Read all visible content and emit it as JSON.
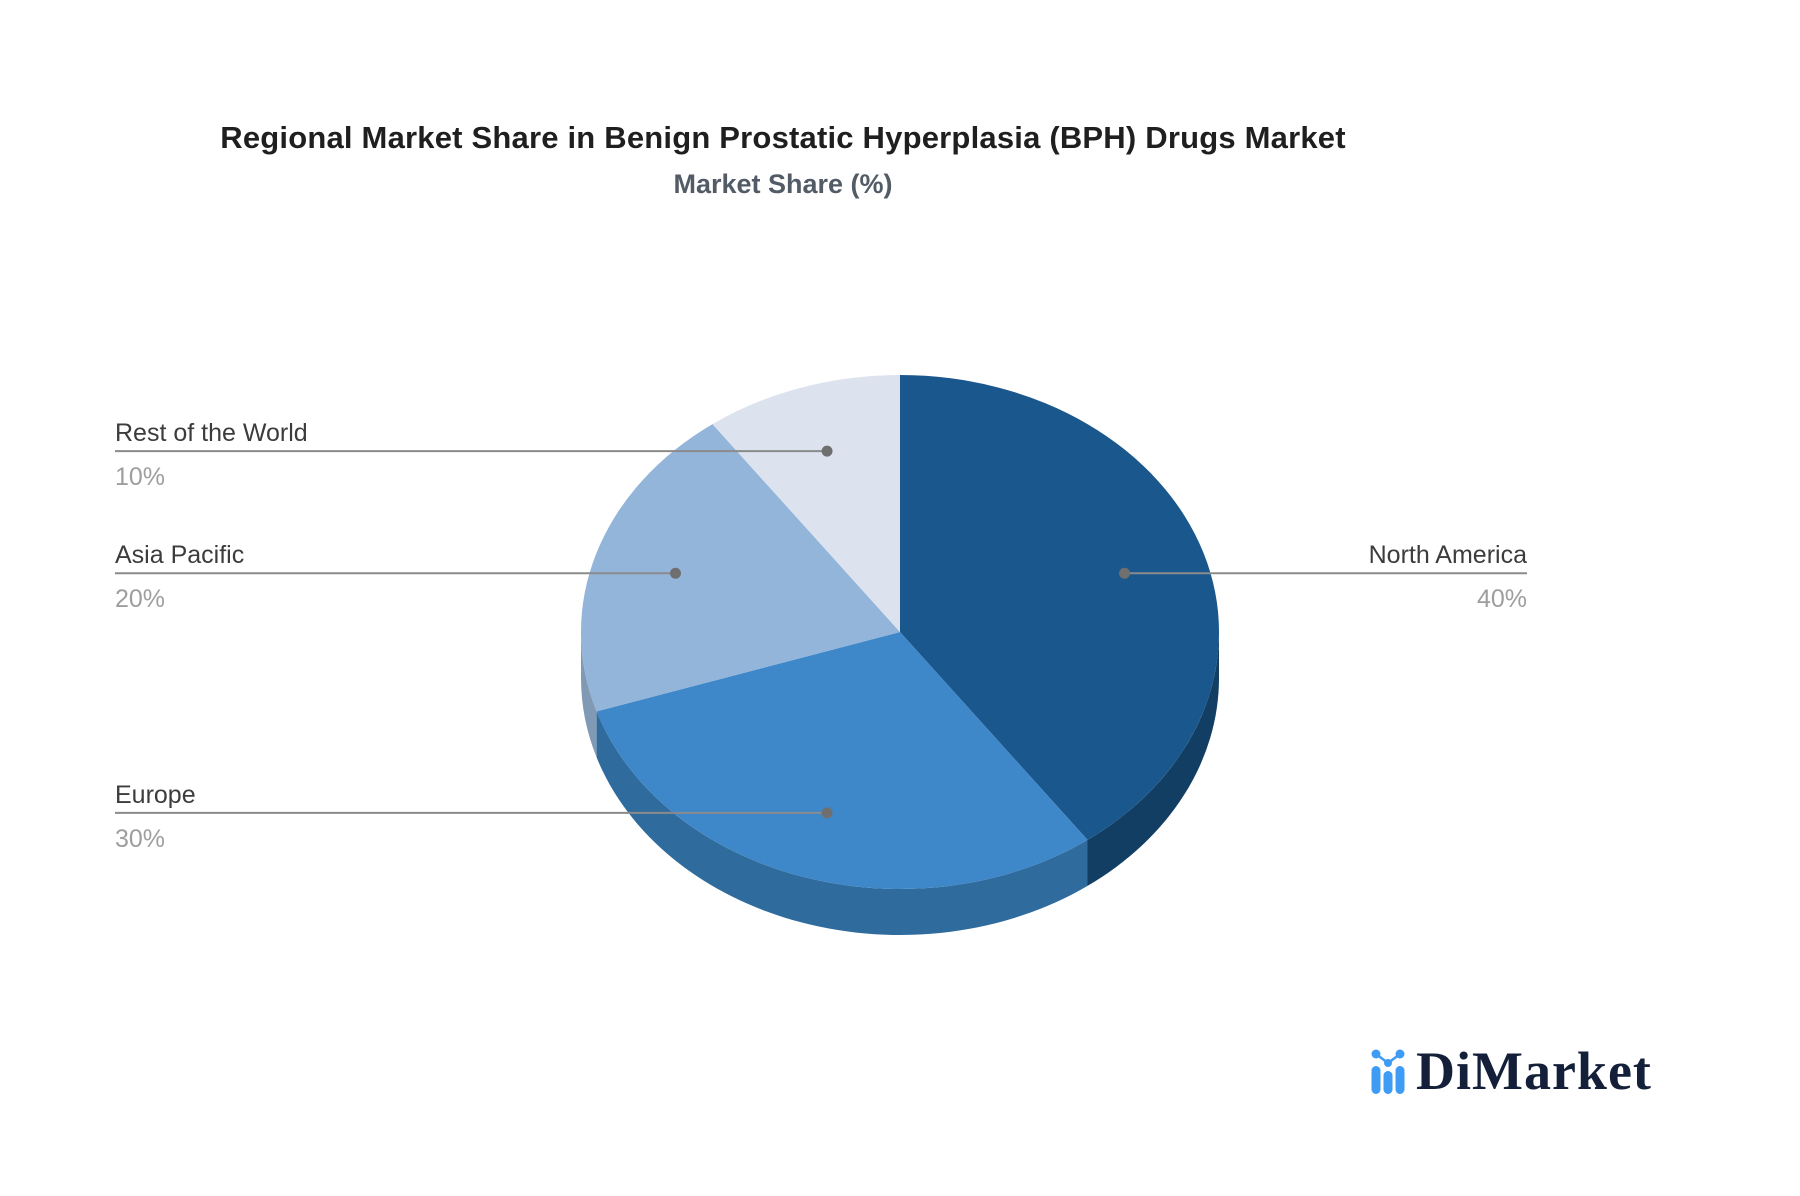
{
  "title": "Regional Market Share in Benign Prostatic Hyperplasia (BPH) Drugs Market",
  "subtitle": "Market Share (%)",
  "chart_data": {
    "type": "pie",
    "style": "3d-depth",
    "unit": "%",
    "start_angle": "12-o-clock",
    "direction": "clockwise",
    "legend_position": "none",
    "labels_shown_as": "leader-line callouts",
    "categories": [
      "North America",
      "Europe",
      "Asia Pacific",
      "Rest of the World"
    ],
    "values": [
      40,
      30,
      20,
      10
    ],
    "slices": [
      {
        "label": "North America",
        "value": 40,
        "value_label": "40%",
        "color": "#1A578C",
        "side_color": "#123E63",
        "label_side": "right"
      },
      {
        "label": "Europe",
        "value": 30,
        "value_label": "30%",
        "color": "#3E88CA",
        "side_color": "#2F6B9D",
        "label_side": "left"
      },
      {
        "label": "Asia Pacific",
        "value": 20,
        "value_label": "20%",
        "color": "#93B5DA",
        "side_color": "#8099B4",
        "label_side": "left"
      },
      {
        "label": "Rest of the World",
        "value": 10,
        "value_label": "10%",
        "color": "#DCE3EF",
        "side_color": "#C3CEE0",
        "label_side": "left"
      }
    ],
    "callout_style": {
      "line_color": "#8b8b8b",
      "dot_color": "#6f6f6f",
      "label_color": "#3c3c3c",
      "value_color": "#9e9e9e"
    }
  },
  "branding": {
    "logo_text": "DiMarket",
    "logo_text_color": "#14203a",
    "logo_accent_color": "#3f9cf5",
    "logo_icon": "bar-chart-with-trend-dots-icon"
  }
}
